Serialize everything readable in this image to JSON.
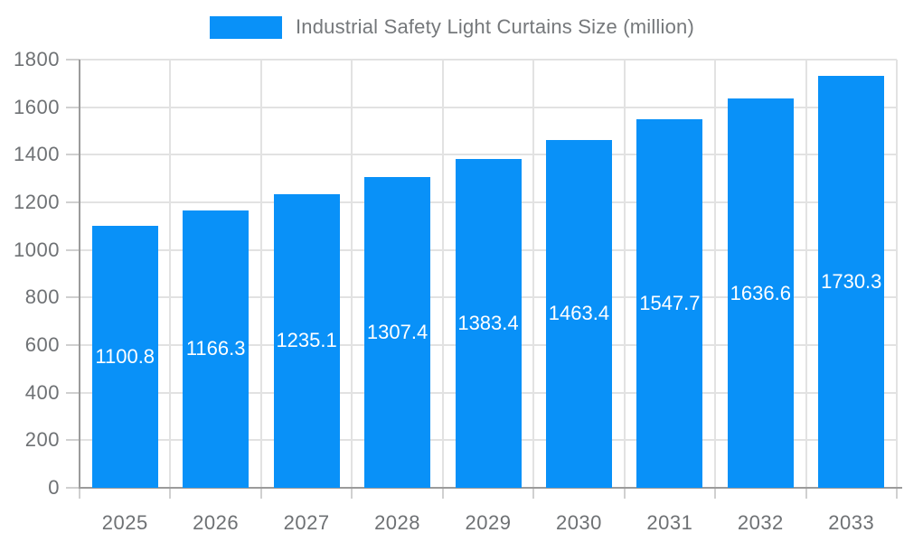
{
  "chart_data": {
    "type": "bar",
    "title": "Industrial Safety Light Curtains Size (million)",
    "categories": [
      "2025",
      "2026",
      "2027",
      "2028",
      "2029",
      "2030",
      "2031",
      "2032",
      "2033"
    ],
    "values": [
      1100.8,
      1166.3,
      1235.1,
      1307.4,
      1383.4,
      1463.4,
      1547.7,
      1636.6,
      1730.3
    ],
    "value_labels": [
      "1100.8",
      "1166.3",
      "1235.1",
      "1307.4",
      "1383.4",
      "1463.4",
      "1547.7",
      "1636.6",
      "1730.3"
    ],
    "xlabel": "",
    "ylabel": "",
    "ylim": [
      0,
      1800
    ],
    "yticks": [
      0,
      200,
      400,
      600,
      800,
      1000,
      1200,
      1400,
      1600,
      1800
    ],
    "grid": true,
    "legend_position": "top-center",
    "colors": {
      "bar": "#0991f8",
      "value_label_text": "#ffffff",
      "axis_text": "#6e7174",
      "title_text": "#75787b",
      "grid_line": "#e2e2e2",
      "tick_line": "#d0d0d0",
      "axis_line": "#9b9b9b",
      "background": "#ffffff"
    }
  }
}
